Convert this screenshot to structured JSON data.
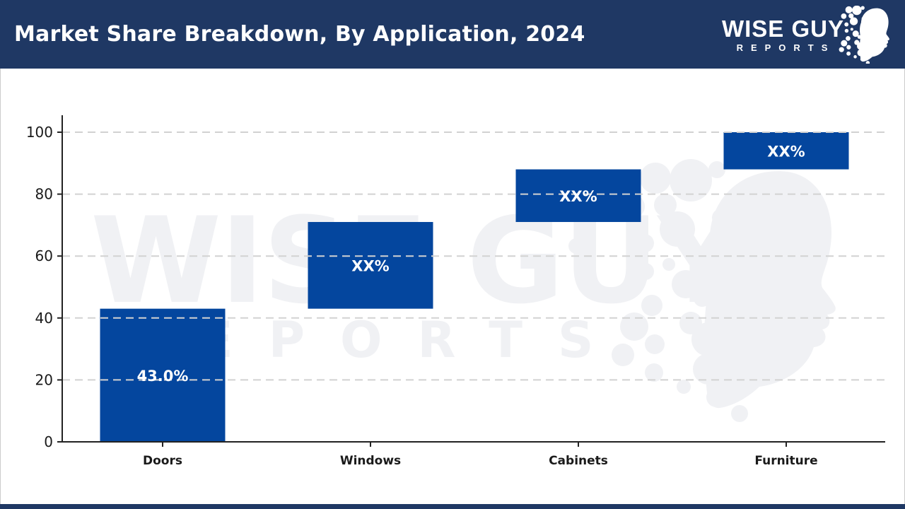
{
  "header": {
    "title": "Market Share Breakdown, By Application, 2024",
    "logo": {
      "line1": "WISE GUY",
      "line2": "REPORTS"
    }
  },
  "watermark": {
    "line1": "WISE GUY",
    "line2": "REPORTS"
  },
  "colors": {
    "header_bg": "#1F3864",
    "footer_bg": "#1F3864",
    "bar_blue": "#04469E",
    "bar_label_text": "#FFFFFF",
    "axis": "#222222",
    "tick_text": "#1A1A1A",
    "grid_gray": "#D2D2D2",
    "watermark_gray": "#F0F1F4",
    "title_text": "#FFFFFF"
  },
  "chart_data": {
    "type": "bar",
    "variant": "waterfall",
    "title": "Market Share Breakdown, By Application, 2024",
    "categories": [
      "Doors",
      "Windows",
      "Cabinets",
      "Furniture"
    ],
    "segments": [
      {
        "category": "Doors",
        "start": 0,
        "end": 43,
        "value": 43.0,
        "label": "43.0%"
      },
      {
        "category": "Windows",
        "start": 43,
        "end": 71,
        "value": 28,
        "label": "XX%"
      },
      {
        "category": "Cabinets",
        "start": 71,
        "end": 88,
        "value": 17,
        "label": "XX%"
      },
      {
        "category": "Furniture",
        "start": 88,
        "end": 100,
        "value": 12,
        "label": "XX%"
      }
    ],
    "xlabel": "",
    "ylabel": "",
    "yticks": [
      0,
      20,
      40,
      60,
      80,
      100
    ],
    "ylim": [
      0,
      105
    ],
    "grid": "horizontal-dashed",
    "legend": null,
    "bar_color": "#04469E",
    "bar_label_color": "#FFFFFF"
  }
}
